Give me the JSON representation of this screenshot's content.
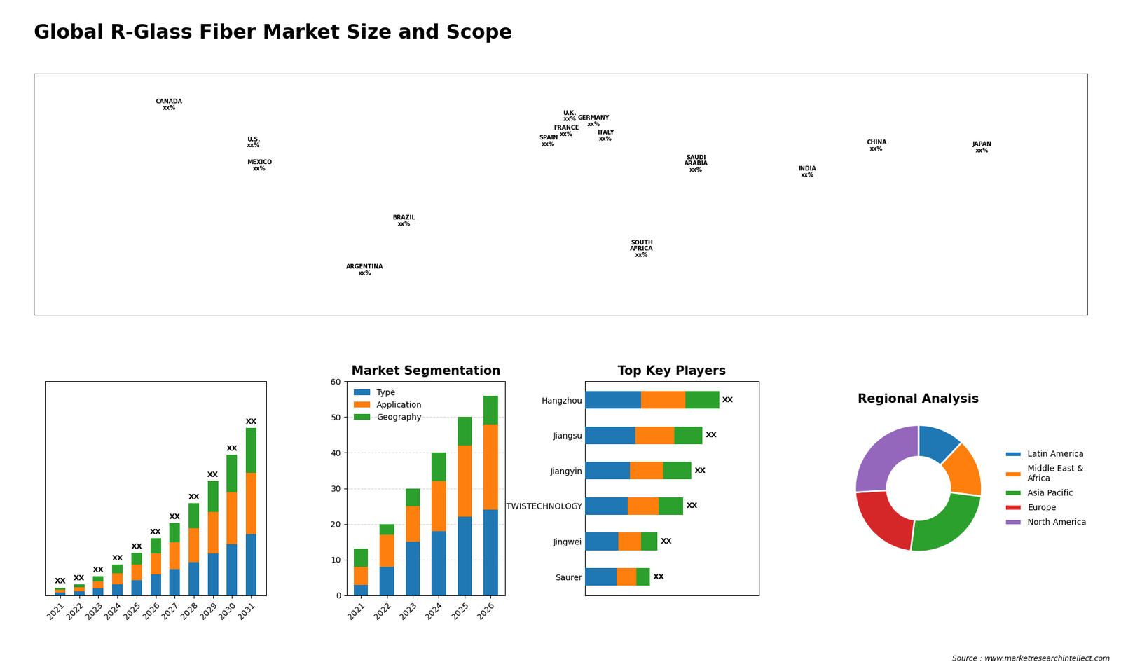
{
  "title": "Global R-Glass Fiber Market Size and Scope",
  "annotations": [
    "Source : www.marketresearchintellect.com"
  ],
  "chart_data": [
    {
      "type": "map",
      "categories": [
        "CANADA\nxx%",
        "U.S.\nxx%",
        "MEXICO\nxx%",
        "BRAZIL\nxx%",
        "ARGENTINA\nxx%",
        "U.K.\nxx%",
        "FRANCE\nxx%",
        "SPAIN\nxx%",
        "GERMANY\nxx%",
        "ITALY\nxx%",
        "SAUDI\nARABIA\nxx%",
        "SOUTH\nAFRICA\nxx%",
        "CHINA\nxx%",
        "INDIA\nxx%",
        "JAPAN\nxx%"
      ],
      "x": [
        -130,
        -102,
        -100,
        -52,
        -65,
        3,
        2,
        -4,
        11,
        15,
        45,
        27,
        105,
        82,
        140
      ],
      "y": [
        63,
        40,
        26,
        -8,
        -38,
        56,
        47,
        41,
        53,
        44,
        27,
        -25,
        38,
        22,
        37
      ],
      "xlim": [
        -175,
        175
      ],
      "ylim": [
        -65,
        82
      ],
      "tick_labels": false
    },
    {
      "type": "bar",
      "stacked": true,
      "categories": [
        "2021",
        "2022",
        "2023",
        "2024",
        "2025",
        "2026",
        "2027",
        "2028",
        "2029",
        "2030",
        "2031"
      ],
      "series": [
        {
          "values": [
            1.0,
            1.5,
            2.5,
            4.0,
            5.5,
            7.5,
            9.5,
            12.0,
            15.0,
            18.5,
            22.0
          ]
        },
        {
          "values": [
            1.0,
            1.5,
            2.5,
            4.0,
            5.5,
            7.5,
            9.5,
            12.0,
            15.0,
            18.5,
            22.0
          ]
        },
        {
          "values": [
            0.8,
            1.0,
            1.8,
            3.0,
            4.2,
            5.5,
            7.0,
            9.0,
            11.0,
            13.5,
            16.0
          ]
        }
      ],
      "value_labels": [
        "XX",
        "XX",
        "XX",
        "XX",
        "XX",
        "XX",
        "XX",
        "XX",
        "XX",
        "XX",
        "XX"
      ],
      "ylim": [
        0,
        76.8
      ],
      "tick_labels": "x"
    },
    {
      "type": "bar",
      "stacked": true,
      "title": "Market Segmentation",
      "categories": [
        "2021",
        "2022",
        "2023",
        "2024",
        "2025",
        "2026"
      ],
      "series": [
        {
          "name": "Type",
          "values": [
            3,
            8,
            15,
            18,
            22,
            24
          ]
        },
        {
          "name": "Application",
          "values": [
            5,
            9,
            10,
            14,
            20,
            24
          ]
        },
        {
          "name": "Geography",
          "values": [
            5,
            3,
            5,
            8,
            8,
            8
          ]
        }
      ],
      "ylim": [
        0,
        60
      ],
      "yticks": [
        0,
        10,
        20,
        30,
        40,
        50,
        60
      ],
      "grid": true,
      "legend": "upper left"
    },
    {
      "type": "bar",
      "stacked": true,
      "orientation": "horizontal",
      "title": "Top Key Players",
      "categories": [
        "Hangzhou",
        "Jiangsu",
        "Jiangyin",
        "TWISTECHNOLOGY",
        "Jingwei",
        "Saurer"
      ],
      "series": [
        {
          "values": [
            5.0,
            4.5,
            4.0,
            3.8,
            3.0,
            2.8
          ]
        },
        {
          "values": [
            4.0,
            3.5,
            3.0,
            2.8,
            2.0,
            1.8
          ]
        },
        {
          "values": [
            3.0,
            2.5,
            2.5,
            2.2,
            1.5,
            1.2
          ]
        }
      ],
      "value_labels": [
        "XX",
        "XX",
        "XX",
        "XX",
        "XX",
        "XX"
      ],
      "xlim": [
        0,
        15.6
      ],
      "tick_labels": "y"
    },
    {
      "type": "donut",
      "title": "Regional Analysis",
      "categories": [
        "Latin America",
        "Middle East &\nAfrica",
        "Asia Pacific",
        "Europe",
        "North America"
      ],
      "values": [
        12,
        15,
        25,
        22,
        26
      ],
      "legend": "center left"
    }
  ]
}
